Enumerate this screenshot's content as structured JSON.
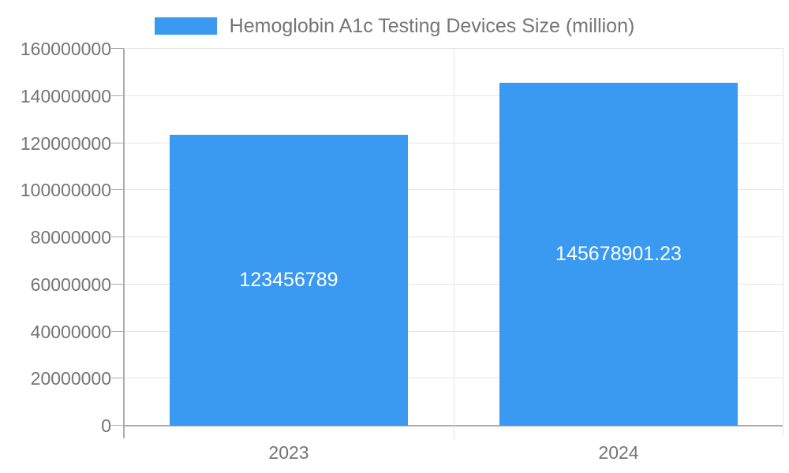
{
  "chart_data": {
    "type": "bar",
    "title": "",
    "xlabel": "",
    "ylabel": "",
    "legend": {
      "label": "Hemoglobin A1c Testing Devices Size (million)",
      "position": "top-center"
    },
    "categories": [
      "2023",
      "2024"
    ],
    "series": [
      {
        "name": "Hemoglobin A1c Testing Devices Size (million)",
        "values": [
          123456789,
          145678901.23
        ],
        "value_labels": [
          "123456789",
          "145678901.23"
        ]
      }
    ],
    "ylim": [
      0,
      160000000
    ],
    "y_tick_step": 20000000,
    "y_tick_labels": [
      "0",
      "20000000",
      "40000000",
      "60000000",
      "80000000",
      "100000000",
      "120000000",
      "140000000",
      "160000000"
    ],
    "grid": true
  },
  "colors": {
    "bar": "#3A99F1",
    "grid_line": "#E6E6E6",
    "axis_line": "#ACACAC",
    "tick_text": "#757575",
    "legend_text": "#757575",
    "value_label_text": "#FFFFFF",
    "background": "#FFFFFF"
  }
}
